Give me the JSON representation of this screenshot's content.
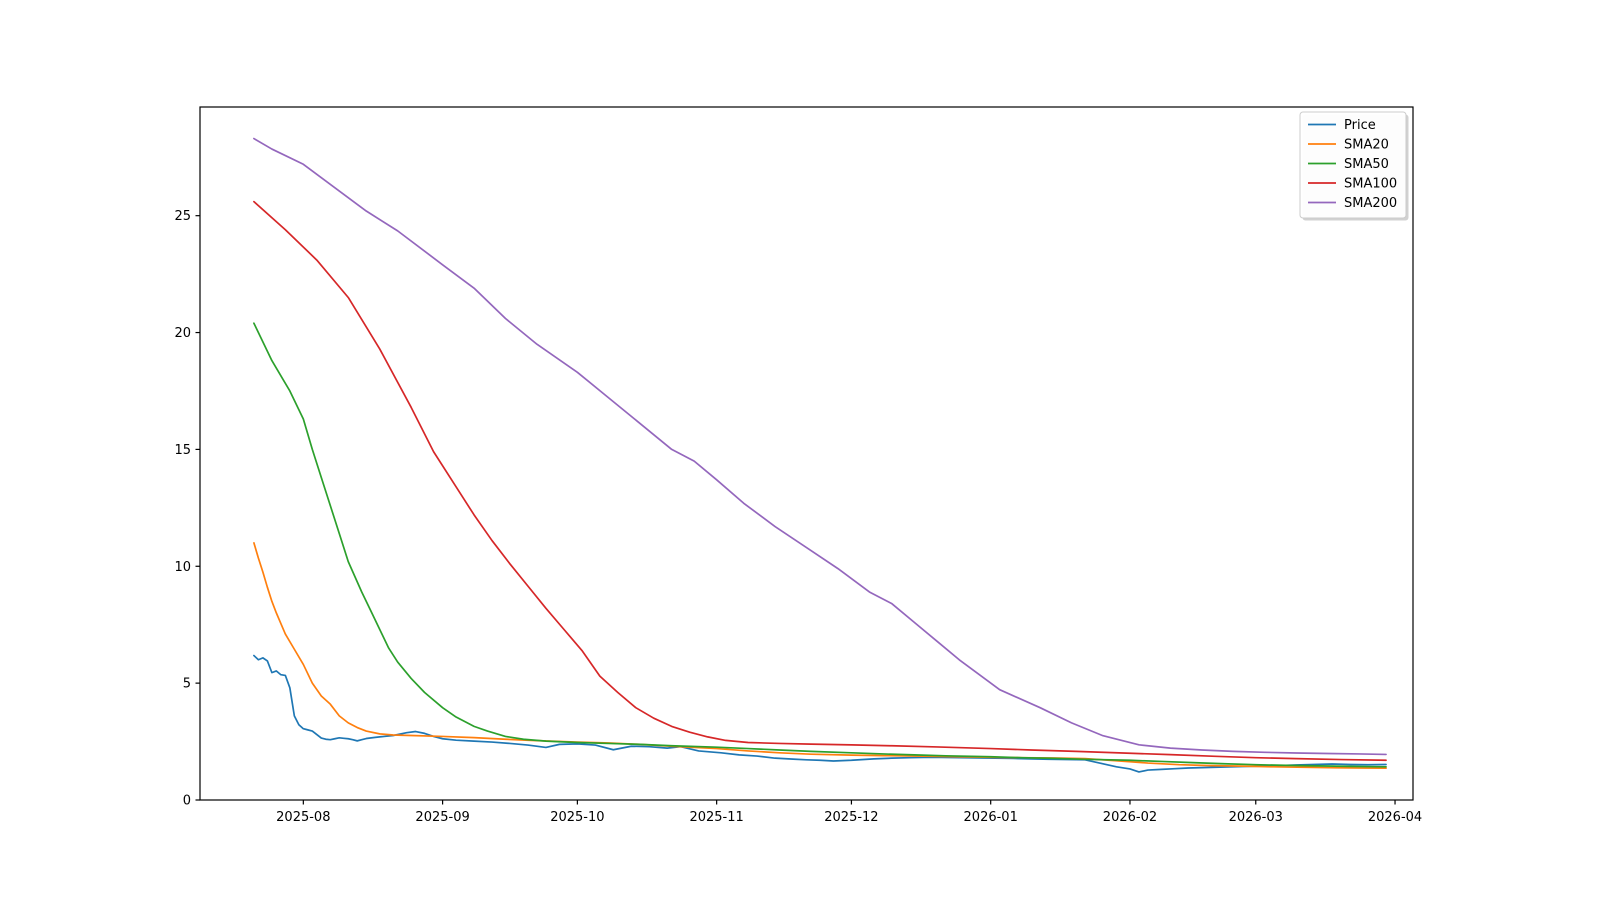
{
  "figure": {
    "background": "#ffffff",
    "frame_color": "#000000"
  },
  "chart_data": {
    "type": "line",
    "title": "",
    "xlabel": "",
    "ylabel": "",
    "grid": false,
    "x_axis": {
      "domain": [
        "2025-07-09",
        "2026-04-05"
      ],
      "ticks": [
        {
          "date": "2025-08-01",
          "label": "2025-08"
        },
        {
          "date": "2025-09-01",
          "label": "2025-09"
        },
        {
          "date": "2025-10-01",
          "label": "2025-10"
        },
        {
          "date": "2025-11-01",
          "label": "2025-11"
        },
        {
          "date": "2025-12-01",
          "label": "2025-12"
        },
        {
          "date": "2026-01-01",
          "label": "2026-01"
        },
        {
          "date": "2026-02-01",
          "label": "2026-02"
        },
        {
          "date": "2026-03-01",
          "label": "2026-03"
        },
        {
          "date": "2026-04-01",
          "label": "2026-04"
        }
      ]
    },
    "y_axis": {
      "min": 0,
      "max": 29.65,
      "ticks": [
        0,
        5,
        10,
        15,
        20,
        25
      ]
    },
    "legend": {
      "position": "upper right",
      "entries": [
        "Price",
        "SMA20",
        "SMA50",
        "SMA100",
        "SMA200"
      ]
    },
    "series": [
      {
        "name": "Price",
        "color": "#1f77b4",
        "points": [
          [
            "2025-07-21",
            6.18
          ],
          [
            "2025-07-22",
            6.0
          ],
          [
            "2025-07-23",
            6.08
          ],
          [
            "2025-07-24",
            5.95
          ],
          [
            "2025-07-25",
            5.45
          ],
          [
            "2025-07-26",
            5.52
          ],
          [
            "2025-07-27",
            5.36
          ],
          [
            "2025-07-28",
            5.33
          ],
          [
            "2025-07-29",
            4.8
          ],
          [
            "2025-07-30",
            3.6
          ],
          [
            "2025-07-31",
            3.22
          ],
          [
            "2025-08-01",
            3.05
          ],
          [
            "2025-08-02",
            3.0
          ],
          [
            "2025-08-03",
            2.95
          ],
          [
            "2025-08-04",
            2.8
          ],
          [
            "2025-08-05",
            2.65
          ],
          [
            "2025-08-06",
            2.6
          ],
          [
            "2025-08-07",
            2.58
          ],
          [
            "2025-08-08",
            2.62
          ],
          [
            "2025-08-09",
            2.66
          ],
          [
            "2025-08-10",
            2.64
          ],
          [
            "2025-08-11",
            2.62
          ],
          [
            "2025-08-12",
            2.58
          ],
          [
            "2025-08-13",
            2.53
          ],
          [
            "2025-08-14",
            2.58
          ],
          [
            "2025-08-15",
            2.63
          ],
          [
            "2025-08-17",
            2.68
          ],
          [
            "2025-08-19",
            2.72
          ],
          [
            "2025-08-21",
            2.76
          ],
          [
            "2025-08-24",
            2.88
          ],
          [
            "2025-08-26",
            2.93
          ],
          [
            "2025-08-28",
            2.85
          ],
          [
            "2025-08-30",
            2.72
          ],
          [
            "2025-09-01",
            2.62
          ],
          [
            "2025-09-04",
            2.56
          ],
          [
            "2025-09-08",
            2.52
          ],
          [
            "2025-09-12",
            2.48
          ],
          [
            "2025-09-16",
            2.42
          ],
          [
            "2025-09-20",
            2.35
          ],
          [
            "2025-09-24",
            2.25
          ],
          [
            "2025-09-27",
            2.38
          ],
          [
            "2025-10-01",
            2.4
          ],
          [
            "2025-10-05",
            2.35
          ],
          [
            "2025-10-09",
            2.15
          ],
          [
            "2025-10-13",
            2.3
          ],
          [
            "2025-10-17",
            2.28
          ],
          [
            "2025-10-21",
            2.22
          ],
          [
            "2025-10-24",
            2.28
          ],
          [
            "2025-10-28",
            2.1
          ],
          [
            "2025-11-02",
            2.02
          ],
          [
            "2025-11-06",
            1.93
          ],
          [
            "2025-11-10",
            1.88
          ],
          [
            "2025-11-14",
            1.79
          ],
          [
            "2025-11-18",
            1.75
          ],
          [
            "2025-11-21",
            1.72
          ],
          [
            "2025-11-24",
            1.7
          ],
          [
            "2025-11-27",
            1.67
          ],
          [
            "2025-12-01",
            1.7
          ],
          [
            "2025-12-06",
            1.76
          ],
          [
            "2025-12-10",
            1.79
          ],
          [
            "2025-12-14",
            1.81
          ],
          [
            "2025-12-17",
            1.82
          ],
          [
            "2025-12-21",
            1.82
          ],
          [
            "2025-12-25",
            1.81
          ],
          [
            "2025-12-29",
            1.8
          ],
          [
            "2026-01-02",
            1.79
          ],
          [
            "2026-01-06",
            1.78
          ],
          [
            "2026-01-10",
            1.76
          ],
          [
            "2026-01-14",
            1.74
          ],
          [
            "2026-01-18",
            1.73
          ],
          [
            "2026-01-22",
            1.72
          ],
          [
            "2026-01-26",
            1.55
          ],
          [
            "2026-01-29",
            1.42
          ],
          [
            "2026-02-01",
            1.33
          ],
          [
            "2026-02-03",
            1.2
          ],
          [
            "2026-02-05",
            1.28
          ],
          [
            "2026-02-08",
            1.31
          ],
          [
            "2026-02-11",
            1.34
          ],
          [
            "2026-02-14",
            1.37
          ],
          [
            "2026-02-18",
            1.39
          ],
          [
            "2026-02-22",
            1.41
          ],
          [
            "2026-02-26",
            1.43
          ],
          [
            "2026-03-02",
            1.45
          ],
          [
            "2026-03-06",
            1.47
          ],
          [
            "2026-03-10",
            1.5
          ],
          [
            "2026-03-14",
            1.52
          ],
          [
            "2026-03-18",
            1.54
          ],
          [
            "2026-03-22",
            1.52
          ],
          [
            "2026-03-26",
            1.51
          ],
          [
            "2026-03-30",
            1.52
          ]
        ]
      },
      {
        "name": "SMA20",
        "color": "#ff7f0e",
        "points": [
          [
            "2025-07-21",
            11.0
          ],
          [
            "2025-07-22",
            10.35
          ],
          [
            "2025-07-23",
            9.75
          ],
          [
            "2025-07-24",
            9.1
          ],
          [
            "2025-07-25",
            8.5
          ],
          [
            "2025-07-26",
            8.0
          ],
          [
            "2025-07-27",
            7.55
          ],
          [
            "2025-07-28",
            7.1
          ],
          [
            "2025-07-30",
            6.45
          ],
          [
            "2025-08-01",
            5.8
          ],
          [
            "2025-08-03",
            5.0
          ],
          [
            "2025-08-05",
            4.45
          ],
          [
            "2025-08-07",
            4.1
          ],
          [
            "2025-08-09",
            3.6
          ],
          [
            "2025-08-11",
            3.3
          ],
          [
            "2025-08-13",
            3.1
          ],
          [
            "2025-08-15",
            2.95
          ],
          [
            "2025-08-18",
            2.83
          ],
          [
            "2025-08-21",
            2.78
          ],
          [
            "2025-08-25",
            2.76
          ],
          [
            "2025-09-01",
            2.72
          ],
          [
            "2025-09-08",
            2.67
          ],
          [
            "2025-09-15",
            2.6
          ],
          [
            "2025-09-22",
            2.54
          ],
          [
            "2025-10-01",
            2.48
          ],
          [
            "2025-10-08",
            2.44
          ],
          [
            "2025-10-15",
            2.38
          ],
          [
            "2025-10-22",
            2.3
          ],
          [
            "2025-11-01",
            2.2
          ],
          [
            "2025-11-08",
            2.1
          ],
          [
            "2025-11-15",
            2.02
          ],
          [
            "2025-11-22",
            1.96
          ],
          [
            "2025-12-01",
            1.92
          ],
          [
            "2025-12-08",
            1.9
          ],
          [
            "2025-12-15",
            1.88
          ],
          [
            "2025-12-22",
            1.86
          ],
          [
            "2026-01-01",
            1.83
          ],
          [
            "2026-01-08",
            1.81
          ],
          [
            "2026-01-15",
            1.8
          ],
          [
            "2026-01-22",
            1.77
          ],
          [
            "2026-01-29",
            1.68
          ],
          [
            "2026-02-05",
            1.58
          ],
          [
            "2026-02-12",
            1.51
          ],
          [
            "2026-02-19",
            1.47
          ],
          [
            "2026-02-26",
            1.45
          ],
          [
            "2026-03-05",
            1.42
          ],
          [
            "2026-03-12",
            1.4
          ],
          [
            "2026-03-19",
            1.38
          ],
          [
            "2026-03-25",
            1.37
          ],
          [
            "2026-03-30",
            1.36
          ]
        ]
      },
      {
        "name": "SMA50",
        "color": "#2ca02c",
        "points": [
          [
            "2025-07-21",
            20.4
          ],
          [
            "2025-07-25",
            18.8
          ],
          [
            "2025-07-29",
            17.5
          ],
          [
            "2025-08-01",
            16.3
          ],
          [
            "2025-08-03",
            15.0
          ],
          [
            "2025-08-05",
            13.8
          ],
          [
            "2025-08-07",
            12.6
          ],
          [
            "2025-08-09",
            11.4
          ],
          [
            "2025-08-11",
            10.2
          ],
          [
            "2025-08-14",
            8.9
          ],
          [
            "2025-08-16",
            8.1
          ],
          [
            "2025-08-18",
            7.3
          ],
          [
            "2025-08-20",
            6.5
          ],
          [
            "2025-08-22",
            5.9
          ],
          [
            "2025-08-25",
            5.2
          ],
          [
            "2025-08-28",
            4.6
          ],
          [
            "2025-09-01",
            3.95
          ],
          [
            "2025-09-04",
            3.55
          ],
          [
            "2025-09-08",
            3.15
          ],
          [
            "2025-09-11",
            2.95
          ],
          [
            "2025-09-15",
            2.72
          ],
          [
            "2025-09-19",
            2.6
          ],
          [
            "2025-09-24",
            2.52
          ],
          [
            "2025-10-01",
            2.46
          ],
          [
            "2025-10-08",
            2.42
          ],
          [
            "2025-10-15",
            2.38
          ],
          [
            "2025-10-22",
            2.32
          ],
          [
            "2025-11-01",
            2.26
          ],
          [
            "2025-11-08",
            2.2
          ],
          [
            "2025-11-15",
            2.14
          ],
          [
            "2025-11-22",
            2.08
          ],
          [
            "2025-12-01",
            2.02
          ],
          [
            "2025-12-08",
            1.97
          ],
          [
            "2025-12-15",
            1.93
          ],
          [
            "2025-12-22",
            1.89
          ],
          [
            "2026-01-01",
            1.85
          ],
          [
            "2026-01-08",
            1.81
          ],
          [
            "2026-01-15",
            1.78
          ],
          [
            "2026-01-22",
            1.74
          ],
          [
            "2026-02-01",
            1.7
          ],
          [
            "2026-02-08",
            1.65
          ],
          [
            "2026-02-15",
            1.6
          ],
          [
            "2026-02-22",
            1.55
          ],
          [
            "2026-03-01",
            1.51
          ],
          [
            "2026-03-08",
            1.48
          ],
          [
            "2026-03-15",
            1.46
          ],
          [
            "2026-03-22",
            1.44
          ],
          [
            "2026-03-30",
            1.42
          ]
        ]
      },
      {
        "name": "SMA100",
        "color": "#d62728",
        "points": [
          [
            "2025-07-21",
            25.6
          ],
          [
            "2025-07-28",
            24.4
          ],
          [
            "2025-08-04",
            23.1
          ],
          [
            "2025-08-11",
            21.5
          ],
          [
            "2025-08-18",
            19.3
          ],
          [
            "2025-08-25",
            16.8
          ],
          [
            "2025-08-30",
            14.9
          ],
          [
            "2025-09-04",
            13.4
          ],
          [
            "2025-09-08",
            12.2
          ],
          [
            "2025-09-12",
            11.1
          ],
          [
            "2025-09-16",
            10.1
          ],
          [
            "2025-09-20",
            9.15
          ],
          [
            "2025-09-24",
            8.2
          ],
          [
            "2025-09-28",
            7.3
          ],
          [
            "2025-10-02",
            6.4
          ],
          [
            "2025-10-06",
            5.3
          ],
          [
            "2025-10-10",
            4.6
          ],
          [
            "2025-10-14",
            3.95
          ],
          [
            "2025-10-18",
            3.5
          ],
          [
            "2025-10-22",
            3.15
          ],
          [
            "2025-10-26",
            2.9
          ],
          [
            "2025-10-30",
            2.7
          ],
          [
            "2025-11-03",
            2.55
          ],
          [
            "2025-11-08",
            2.46
          ],
          [
            "2025-11-15",
            2.42
          ],
          [
            "2025-11-22",
            2.39
          ],
          [
            "2025-12-01",
            2.36
          ],
          [
            "2025-12-10",
            2.32
          ],
          [
            "2025-12-20",
            2.27
          ],
          [
            "2026-01-01",
            2.2
          ],
          [
            "2026-01-10",
            2.14
          ],
          [
            "2026-01-20",
            2.08
          ],
          [
            "2026-02-01",
            2.0
          ],
          [
            "2026-02-10",
            1.94
          ],
          [
            "2026-02-20",
            1.87
          ],
          [
            "2026-03-01",
            1.81
          ],
          [
            "2026-03-10",
            1.77
          ],
          [
            "2026-03-20",
            1.73
          ],
          [
            "2026-03-30",
            1.7
          ]
        ]
      },
      {
        "name": "SMA200",
        "color": "#9467bd",
        "points": [
          [
            "2025-07-21",
            28.3
          ],
          [
            "2025-07-25",
            27.85
          ],
          [
            "2025-08-01",
            27.2
          ],
          [
            "2025-08-08",
            26.2
          ],
          [
            "2025-08-15",
            25.2
          ],
          [
            "2025-08-22",
            24.35
          ],
          [
            "2025-09-01",
            22.9
          ],
          [
            "2025-09-08",
            21.9
          ],
          [
            "2025-09-15",
            20.6
          ],
          [
            "2025-09-22",
            19.5
          ],
          [
            "2025-10-01",
            18.3
          ],
          [
            "2025-10-08",
            17.2
          ],
          [
            "2025-10-15",
            16.1
          ],
          [
            "2025-10-22",
            15.0
          ],
          [
            "2025-10-27",
            14.5
          ],
          [
            "2025-11-01",
            13.7
          ],
          [
            "2025-11-07",
            12.7
          ],
          [
            "2025-11-14",
            11.7
          ],
          [
            "2025-11-21",
            10.8
          ],
          [
            "2025-11-28",
            9.9
          ],
          [
            "2025-12-05",
            8.9
          ],
          [
            "2025-12-10",
            8.4
          ],
          [
            "2025-12-15",
            7.6
          ],
          [
            "2025-12-20",
            6.8
          ],
          [
            "2025-12-25",
            6.0
          ],
          [
            "2026-01-03",
            4.72
          ],
          [
            "2026-01-12",
            3.95
          ],
          [
            "2026-01-19",
            3.3
          ],
          [
            "2026-01-26",
            2.75
          ],
          [
            "2026-02-03",
            2.36
          ],
          [
            "2026-02-10",
            2.22
          ],
          [
            "2026-02-17",
            2.14
          ],
          [
            "2026-02-24",
            2.08
          ],
          [
            "2026-03-03",
            2.04
          ],
          [
            "2026-03-10",
            2.01
          ],
          [
            "2026-03-17",
            1.99
          ],
          [
            "2026-03-24",
            1.97
          ],
          [
            "2026-03-30",
            1.95
          ]
        ]
      }
    ]
  }
}
